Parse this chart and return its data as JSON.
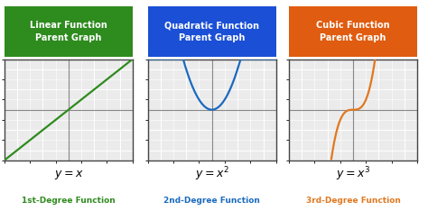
{
  "title1": "Linear Function\nParent Graph",
  "title2": "Quadratic Function\nParent Graph",
  "title3": "Cubic Function\nParent Graph",
  "bg1": "#2e8b1e",
  "bg2": "#1a4fd6",
  "bg3": "#e05c10",
  "line1": "#2e8b1e",
  "line2": "#1a6abf",
  "line3": "#e07820",
  "deg1": "1st-Degree Function",
  "deg2": "2nd-Degree Function",
  "deg3": "3rd-Degree Function",
  "plot_bg": "#ebebeb",
  "grid_color": "#ffffff",
  "axis_color": "#888888",
  "outer_bg": "#ffffff",
  "border_color": "#444444",
  "xlim": [
    -5,
    5
  ],
  "ylim": [
    -5,
    5
  ],
  "header_fontsize": 7.0,
  "eq_fontsize": 9.0,
  "deg_fontsize": 6.5
}
